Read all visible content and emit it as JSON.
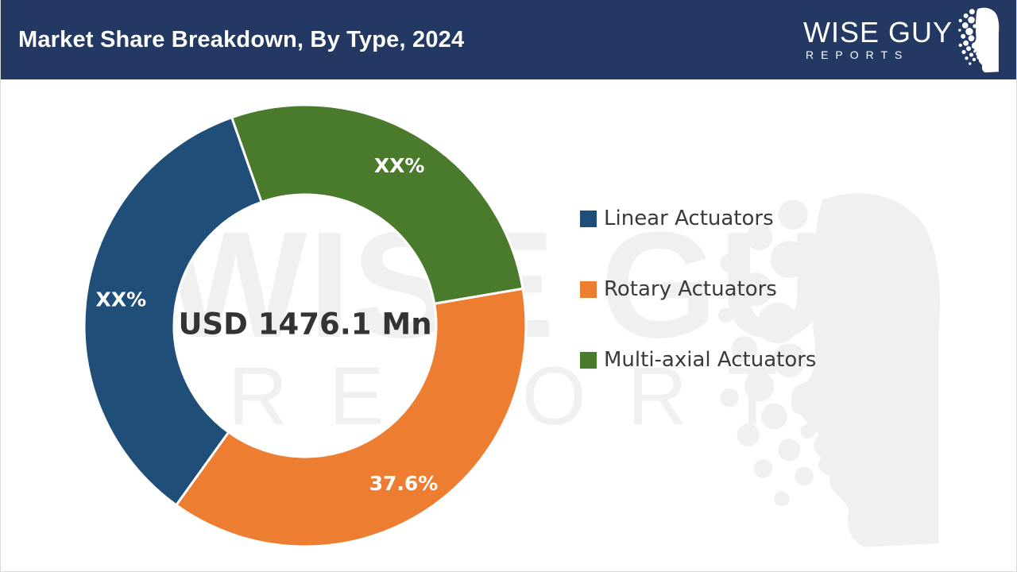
{
  "header": {
    "title": "Market Share Breakdown, By Type, 2024",
    "logo": {
      "line1": "WISE GUY",
      "line2": "REPORTS"
    }
  },
  "watermark": {
    "line1": "WISE GUY",
    "line2": "REPORTS"
  },
  "colors": {
    "header_bg": "#233862",
    "title_text": "#ffffff",
    "watermark": "#f0f0f0",
    "linear_blue": "#1F4E79",
    "rotary_orange": "#ED7D31",
    "multiaxial_green": "#4A7A2C"
  },
  "chart_data": {
    "type": "pie",
    "subtype": "donut",
    "title": "Market Share Breakdown, By Type, 2024",
    "center_label": "USD 1476.1 Mn",
    "legend_position": "right",
    "categories": [
      "Linear Actuators",
      "Rotary Actuators",
      "Multi-axial Actuators"
    ],
    "series": [
      {
        "name": "Linear Actuators",
        "value_pct": 34.7,
        "display_label": "XX%",
        "value_is_estimated": true,
        "color": "#1F4E79"
      },
      {
        "name": "Rotary Actuators",
        "value_pct": 37.6,
        "display_label": "37.6%",
        "value_is_estimated": false,
        "color": "#ED7D31"
      },
      {
        "name": "Multi-axial Actuators",
        "value_pct": 27.7,
        "display_label": "XX%",
        "value_is_estimated": true,
        "color": "#4A7A2C"
      }
    ],
    "start_conic_angle_deg": 340.6,
    "direction": "counterclockwise",
    "note": "Linear and Multi-axial shares are masked as XX% in the source image; their numeric values are estimated from the drawn arc angles."
  }
}
